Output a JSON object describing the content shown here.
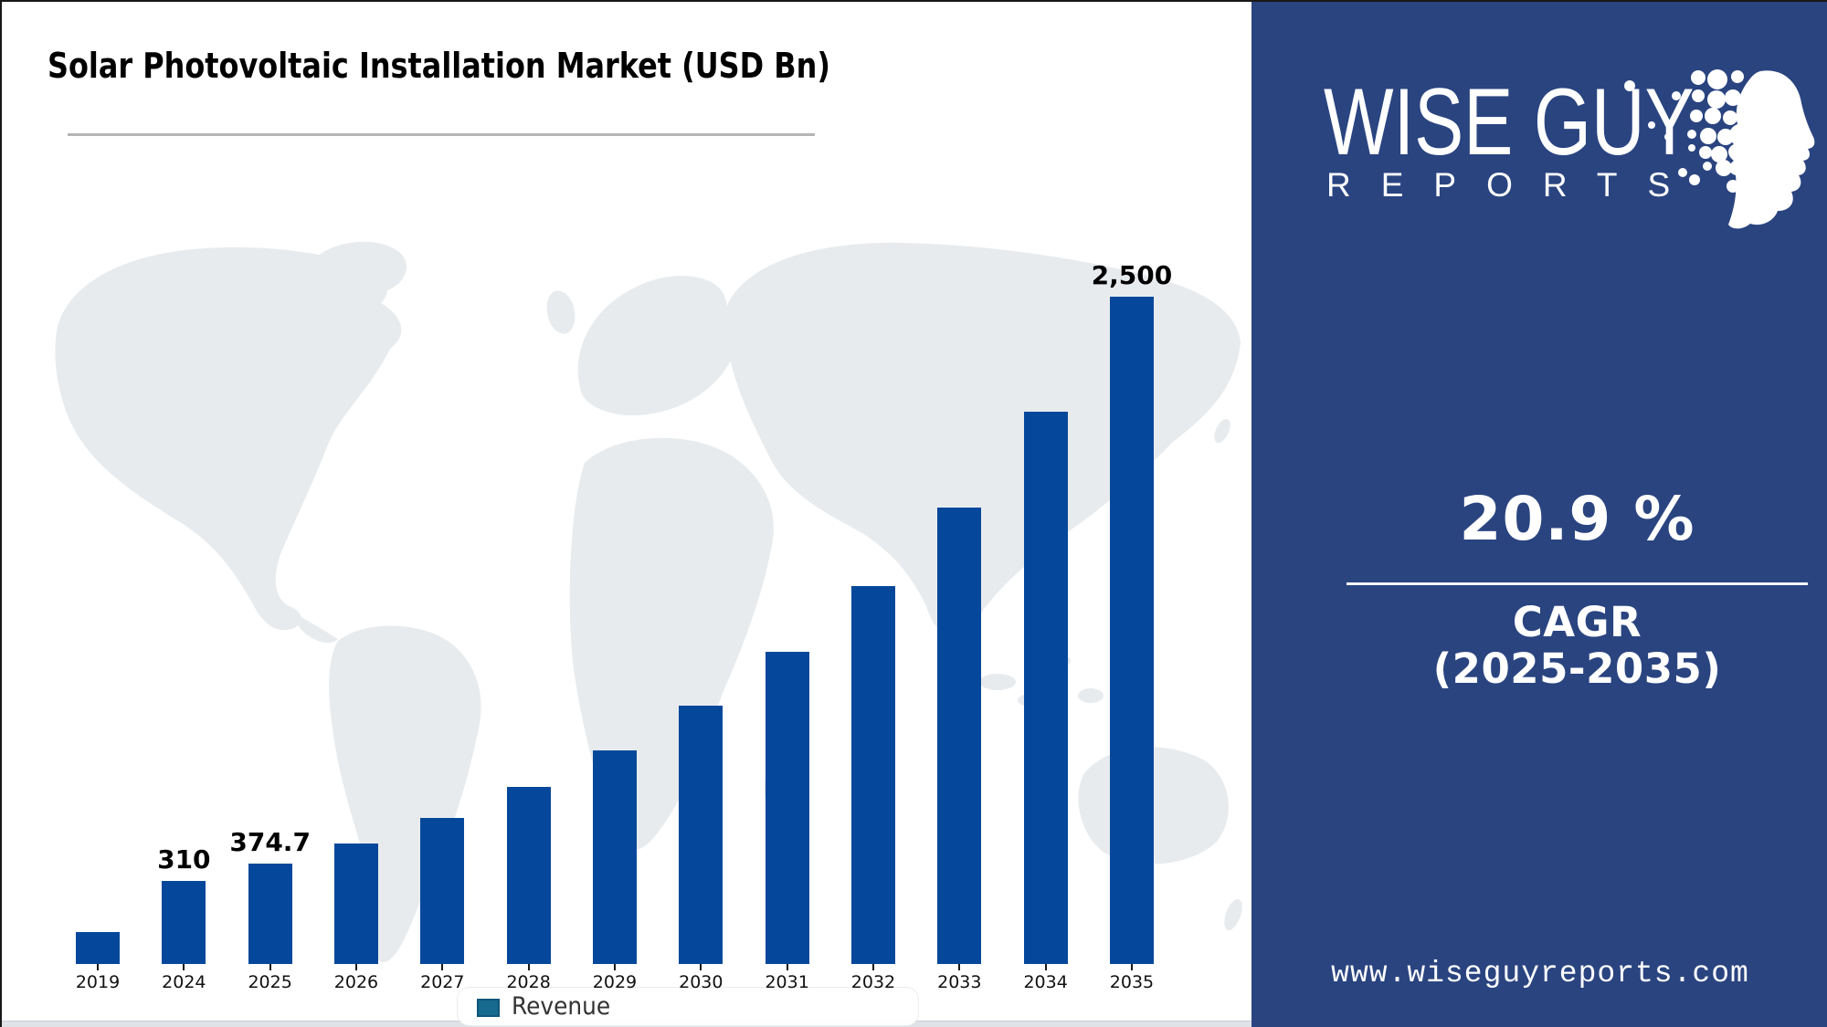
{
  "title": "Solar Photovoltaic Installation Market (USD Bn)",
  "chart_data": {
    "type": "bar",
    "title": "Solar Photovoltaic Installation Market (USD Bn)",
    "xlabel": "",
    "ylabel": "",
    "categories": [
      "2019",
      "2024",
      "2025",
      "2026",
      "2027",
      "2028",
      "2029",
      "2030",
      "2031",
      "2032",
      "2033",
      "2034",
      "2035"
    ],
    "series": [
      {
        "name": "Revenue",
        "values": [
          120,
          310,
          374.7,
          453,
          548,
          662,
          801,
          968,
          1170,
          1415,
          1711,
          2068,
          2500
        ]
      }
    ],
    "value_labels": {
      "2024": "310",
      "2025": "374.7",
      "2035": "2,500"
    },
    "ylim": [
      0,
      2600
    ],
    "grid": false,
    "legend_position": "bottom-left",
    "bar_color": "#05489b"
  },
  "legend": {
    "label": "Revenue",
    "swatch_color": "#16698f"
  },
  "panel": {
    "logo_line1": "WISE GUY",
    "logo_line2": "REPORTS",
    "cagr_value": "20.9 %",
    "cagr_line1": "CAGR",
    "cagr_line2": "(2025-2035)",
    "website": "www.wiseguyreports.com",
    "bg_color": "#2a4480"
  },
  "colors": {
    "bar": "#05489b",
    "panel_bg": "#2a4480",
    "map": "#e8ebee",
    "title_underline": "#b5b5b5",
    "bottom_strip": "#dfe3e8",
    "legend_swatch": "#16698f",
    "text": "#000000"
  }
}
